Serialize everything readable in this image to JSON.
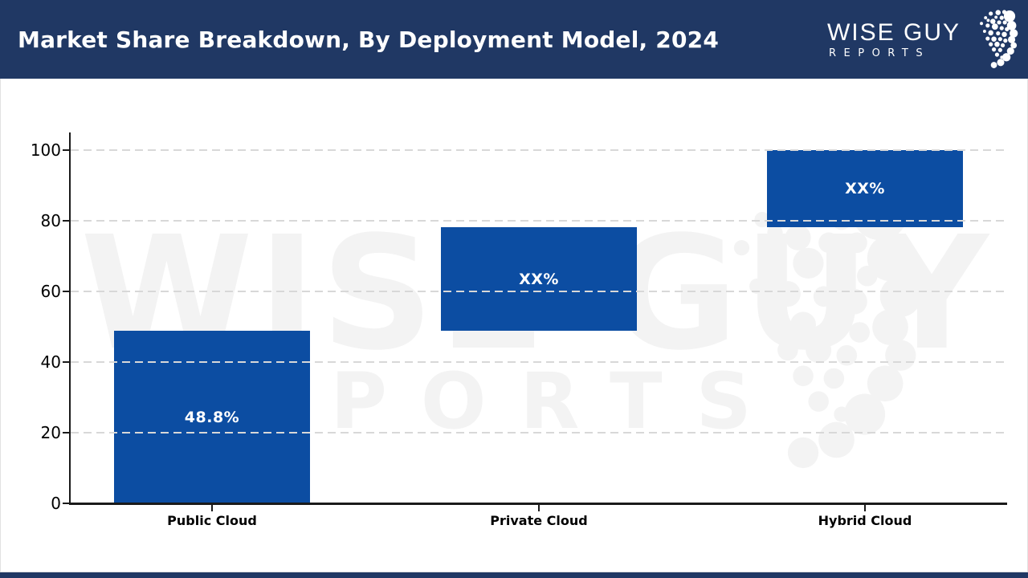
{
  "header": {
    "title": "Market Share Breakdown, By Deployment Model, 2024",
    "bg_color": "#203864",
    "logo": {
      "line1": "WISE GUY",
      "line2": "REPORTS"
    }
  },
  "watermark": {
    "line1": "WISE GUY",
    "line2": "REPORTS"
  },
  "chart_data": {
    "type": "bar",
    "subtype": "waterfall",
    "title": "Market Share Breakdown, By Deployment Model, 2024",
    "categories": [
      "Public Cloud",
      "Private Cloud",
      "Hybrid Cloud"
    ],
    "segments": [
      {
        "category": "Public Cloud",
        "label": "48.8%",
        "start": 0,
        "end": 48.8
      },
      {
        "category": "Private Cloud",
        "label": "XX%",
        "start": 48.8,
        "end": 78.1
      },
      {
        "category": "Hybrid Cloud",
        "label": "XX%",
        "start": 78.1,
        "end": 100
      }
    ],
    "yticks": [
      0,
      20,
      40,
      60,
      80,
      100
    ],
    "ylim": [
      0,
      100
    ],
    "grid": "horizontal-dashed",
    "legend": "none",
    "bar_color": "#0c4da2",
    "grid_color": "#d8d8d8",
    "axis_color": "#1a1a1a",
    "bar_label_color": "#ffffff"
  },
  "footer": {
    "bg_color": "#203864"
  }
}
